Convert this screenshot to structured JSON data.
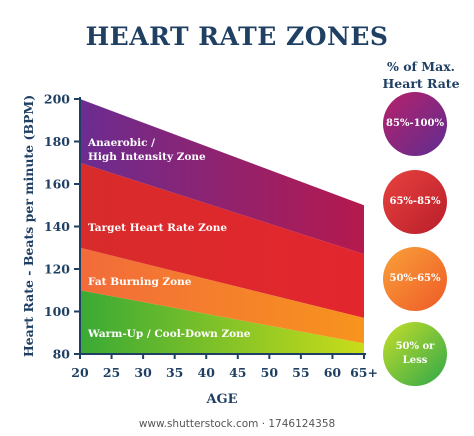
{
  "chart_data": {
    "type": "area",
    "title": "HEART RATE ZONES",
    "xlabel": "AGE",
    "ylabel": "Heart Rate - Beats per minute (BPM)",
    "x_ticks": [
      "20",
      "25",
      "30",
      "35",
      "40",
      "45",
      "50",
      "55",
      "60",
      "65+"
    ],
    "y_ticks": [
      "80",
      "100",
      "120",
      "140",
      "160",
      "180",
      "200"
    ],
    "x": [
      20,
      65
    ],
    "xlim": [
      20,
      65
    ],
    "ylim": [
      80,
      200
    ],
    "series": [
      {
        "name": "Warm-Up / Cool-Down Zone",
        "lower": [
          80,
          80
        ],
        "upper": [
          110,
          85
        ],
        "color_start": "#3aa935",
        "color_end": "#c9dc1a"
      },
      {
        "name": "Fat Burning Zone",
        "lower": [
          110,
          85
        ],
        "upper": [
          130,
          97
        ],
        "color_start": "#f26b3a",
        "color_end": "#f7941d"
      },
      {
        "name": "Target Heart Rate Zone",
        "lower": [
          130,
          97
        ],
        "upper": [
          170,
          127
        ],
        "color_start": "#d82b2b",
        "color_end": "#e3262e"
      },
      {
        "name": "Anaerobic / High Intensity Zone",
        "lower": [
          170,
          127
        ],
        "upper": [
          200,
          150
        ],
        "color_start": "#6b2c91",
        "color_end": "#b5194d"
      }
    ],
    "zone_labels": {
      "anaerobic": [
        "Anaerobic /",
        "High Intensity Zone"
      ],
      "target": "Target Heart Rate Zone",
      "fat": "Fat Burning Zone",
      "warm": "Warm-Up / Cool-Down Zone"
    },
    "legend": {
      "title_line1": "% of Max.",
      "title_line2": "Heart Rate",
      "items": [
        {
          "line1": "85%-100%",
          "line2": "",
          "color_start": "#b7216a",
          "color_end": "#5e2d91"
        },
        {
          "line1": "65%-85%",
          "line2": "",
          "color_start": "#e8423f",
          "color_end": "#b91e2a"
        },
        {
          "line1": "50%-65%",
          "line2": "",
          "color_start": "#f9a13a",
          "color_end": "#ee5a27"
        },
        {
          "line1": "50% or",
          "line2": "Less",
          "color_start": "#c6de2a",
          "color_end": "#2ea84a"
        }
      ]
    },
    "grid": false,
    "legend_position": "right"
  },
  "watermark": "www.shutterstock.com · 1746124358",
  "colors": {
    "text": "#1f3f63",
    "axis": "#1f3f63"
  }
}
